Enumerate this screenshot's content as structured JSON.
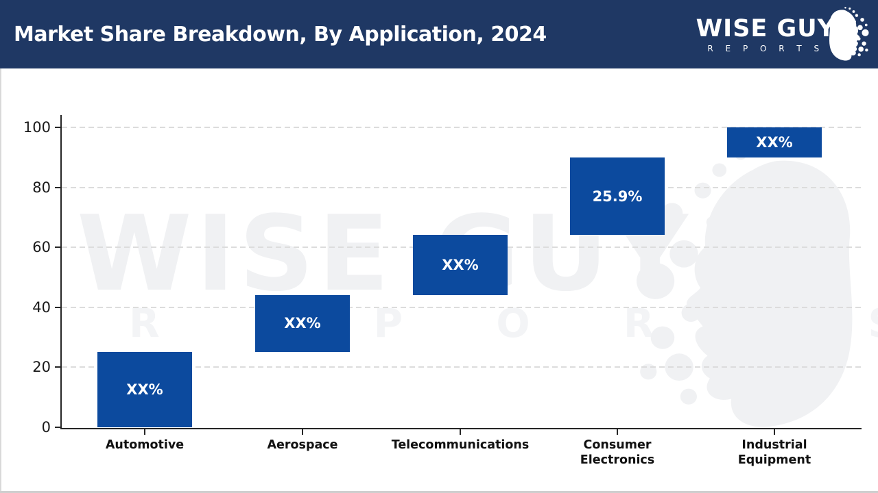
{
  "header": {
    "title": "Market Share Breakdown, By Application, 2024",
    "logo": {
      "line1": "WISE GUY",
      "line2": "R E P O R T S"
    }
  },
  "watermark": {
    "line1": "WISE GUY",
    "line2": "R E P O R T S"
  },
  "icons": {
    "logo_face": "face-profile-dots-icon",
    "watermark_face": "face-profile-dots-icon"
  },
  "colors": {
    "header_bg": "#1f3864",
    "bar": "#0c4a9e",
    "grid": "#dcdcdc",
    "axis": "#262626",
    "bar_label_text": "#ffffff",
    "watermark": "#f0f1f3"
  },
  "chart_data": {
    "type": "bar",
    "subtype": "waterfall-floating-bars",
    "title": "Market Share Breakdown, By Application, 2024",
    "xlabel": "",
    "ylabel": "",
    "categories": [
      "Automotive",
      "Aerospace",
      "Telecommunications",
      "Consumer Electronics",
      "Industrial Equipment"
    ],
    "segments": [
      {
        "from": 0,
        "to": 25.2,
        "size": 25.2
      },
      {
        "from": 25.2,
        "to": 44.1,
        "size": 18.9
      },
      {
        "from": 44.1,
        "to": 64.1,
        "size": 20.0
      },
      {
        "from": 64.1,
        "to": 90.0,
        "size": 25.9
      },
      {
        "from": 90.0,
        "to": 100.0,
        "size": 10.0
      }
    ],
    "bar_labels": [
      "XX%",
      "XX%",
      "XX%",
      "25.9%",
      "XX%"
    ],
    "yticks": [
      0,
      20,
      40,
      60,
      80,
      100
    ],
    "ylim": [
      0,
      105
    ],
    "grid": "dashed-horizontal",
    "legend": "none"
  }
}
